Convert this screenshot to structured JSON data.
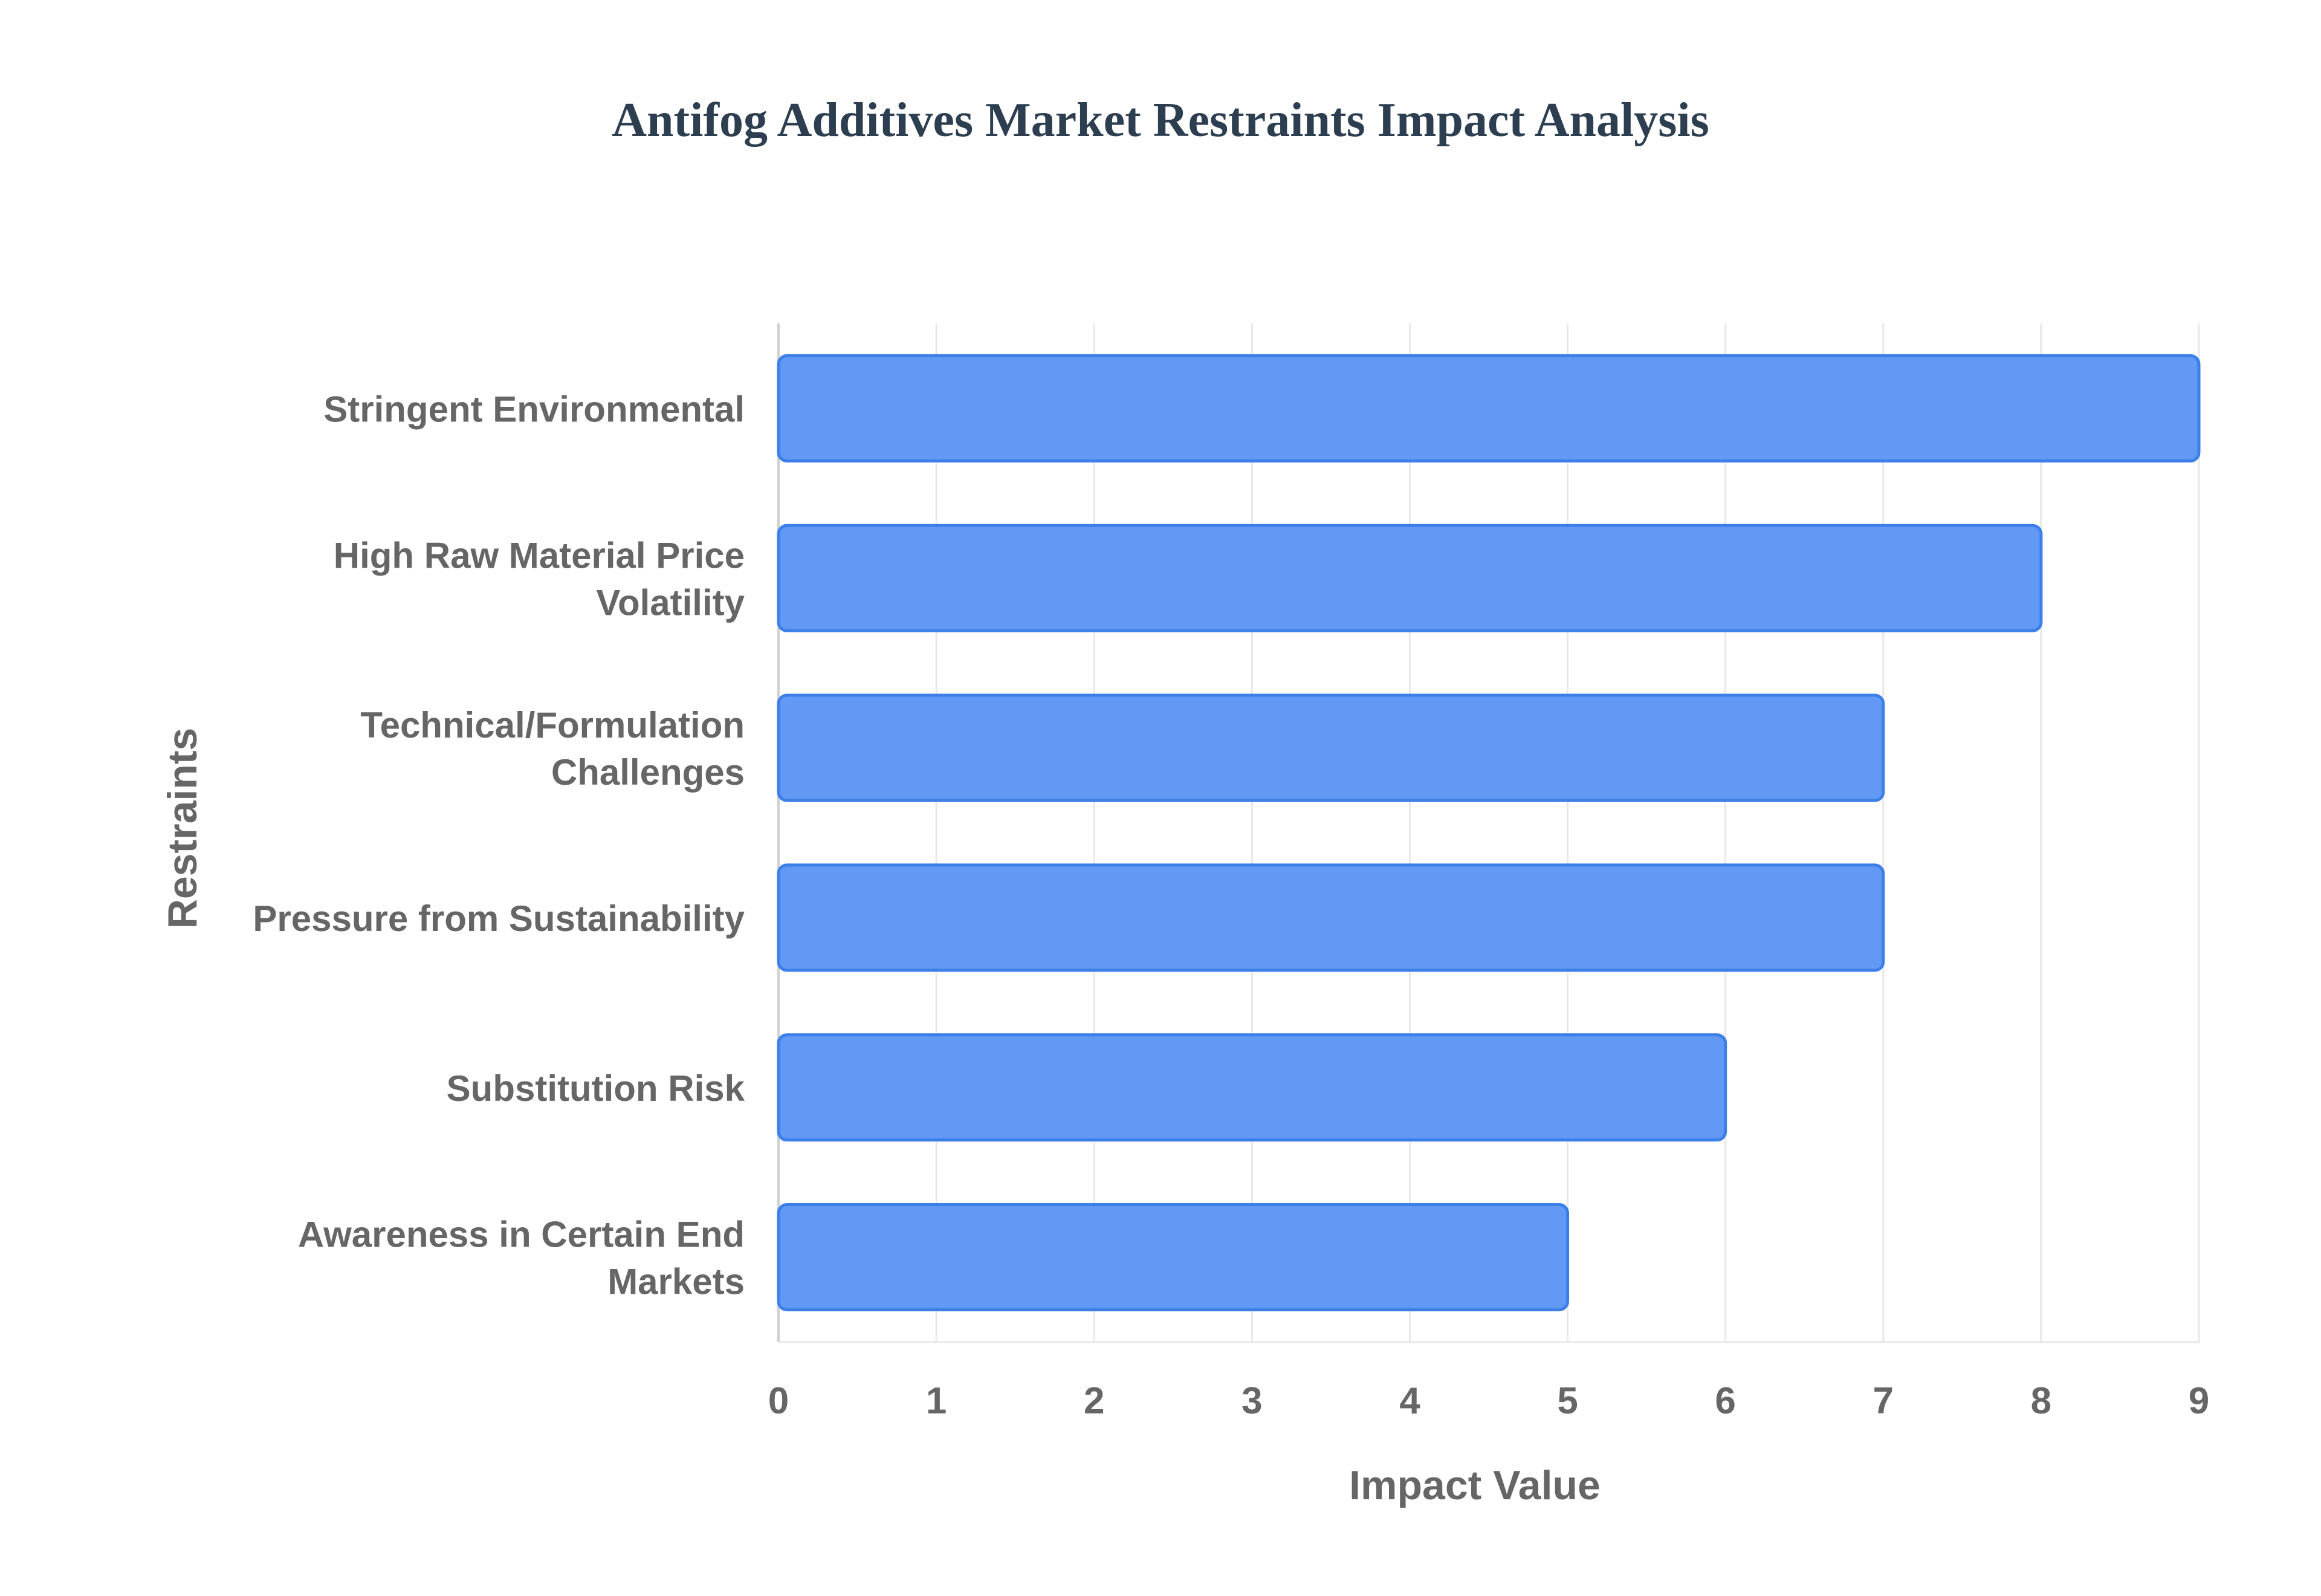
{
  "chart_data": {
    "type": "bar",
    "orientation": "horizontal",
    "title": "Antifog Additives Market Restraints Impact Analysis",
    "xlabel": "Impact Value",
    "ylabel": "Restraints",
    "xlim": [
      0,
      9
    ],
    "xticks": [
      "0",
      "1",
      "2",
      "3",
      "4",
      "5",
      "6",
      "7",
      "8",
      "9"
    ],
    "grid": true,
    "legend": "none",
    "bar_color": "#6199f5",
    "bar_edge_color": "#3d7fe8",
    "categories": [
      [
        "Stringent Environmental"
      ],
      [
        "High Raw Material Price",
        "Volatility"
      ],
      [
        "Technical/Formulation",
        "Challenges"
      ],
      [
        "Pressure from Sustainability"
      ],
      [
        "Substitution Risk"
      ],
      [
        "Awareness in Certain End",
        "Markets"
      ]
    ],
    "values": [
      9,
      8,
      7,
      7,
      6,
      5
    ]
  }
}
